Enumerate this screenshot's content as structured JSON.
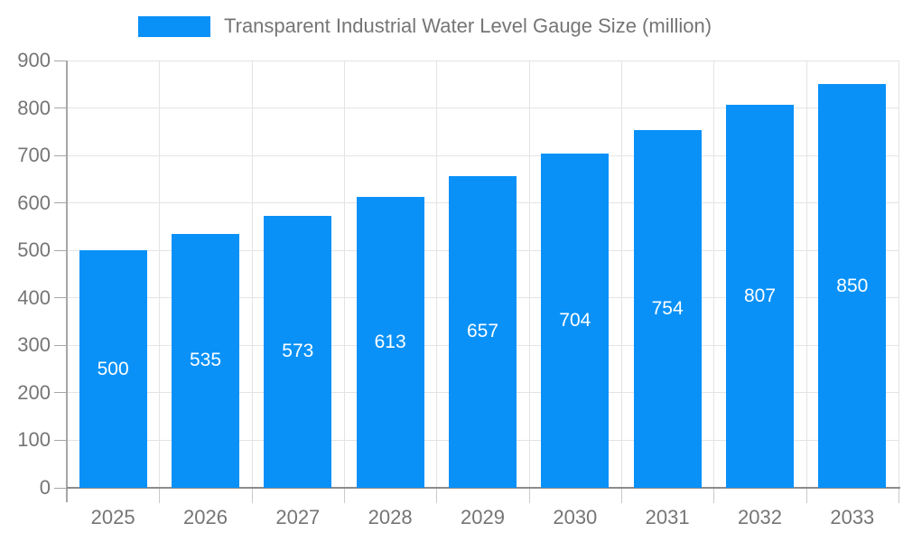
{
  "legend": {
    "label": "Transparent Industrial Water Level Gauge Size (million)"
  },
  "chart_data": {
    "type": "bar",
    "title": "Transparent Industrial Water Level Gauge Size (million)",
    "categories": [
      "2025",
      "2026",
      "2027",
      "2028",
      "2029",
      "2030",
      "2031",
      "2032",
      "2033"
    ],
    "values": [
      500,
      535,
      573,
      613,
      657,
      704,
      754,
      807,
      850
    ],
    "xlabel": "",
    "ylabel": "",
    "ylim": [
      0,
      900
    ],
    "yticks": [
      0,
      100,
      200,
      300,
      400,
      500,
      600,
      700,
      800,
      900
    ],
    "grid": true,
    "legend_position": "top",
    "value_label_position": "inside-center"
  },
  "colors": {
    "bar": "#0991F8",
    "value_label": "#FFFFFF",
    "axis_label": "#757575",
    "legend_label": "#757575",
    "grid_line": "#E4E4E4",
    "y_axis_line": "#A6A6A6",
    "x_axis_line": "#8C8C8C",
    "y_tick": "#A6A6A6",
    "x_tick": "#C9C9C9",
    "background": "#FFFFFF"
  }
}
